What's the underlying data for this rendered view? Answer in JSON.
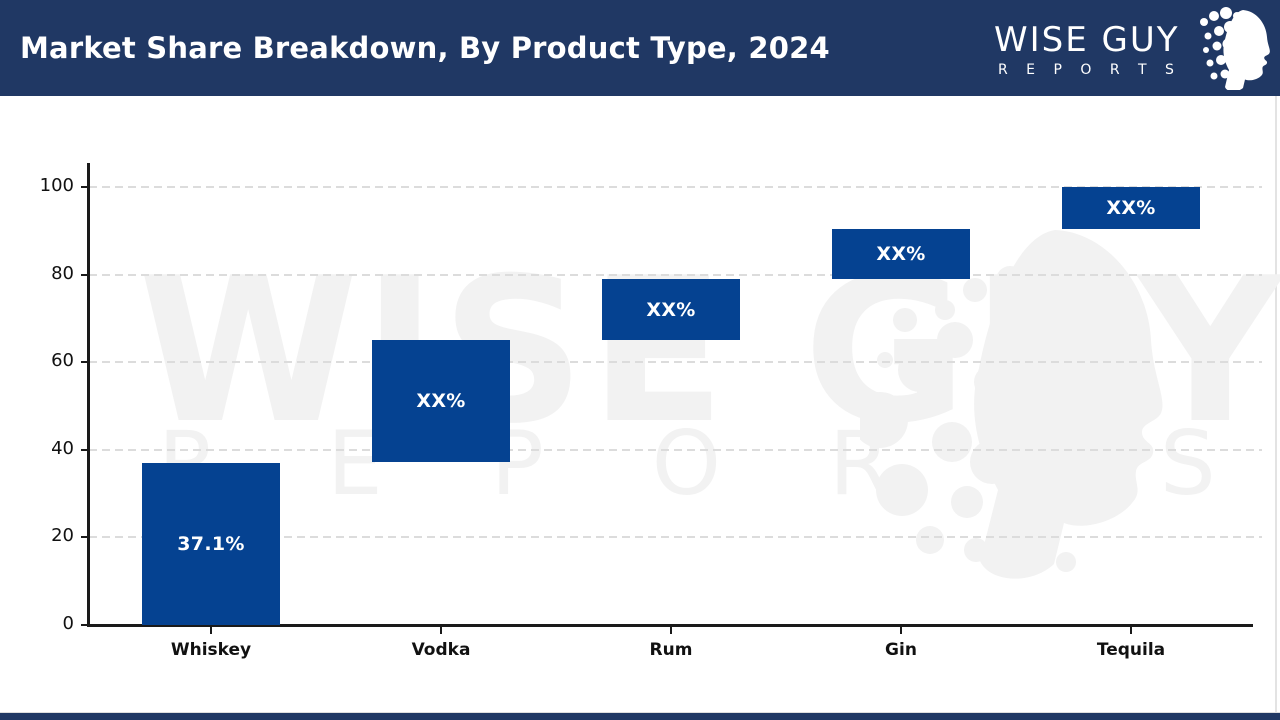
{
  "header": {
    "title": "Market Share Breakdown, By Product Type, 2024",
    "logo": {
      "line1": "WISE GUY",
      "line2": "R E P O R T S"
    }
  },
  "watermark": {
    "line1": "WISE GUY",
    "line2": "R E P O R T S"
  },
  "colors": {
    "header_bg": "#203864",
    "bottom_bar_bg": "#203864",
    "bar": "#054291",
    "bar_label": "#ffffff",
    "gridline": "#dcdcdc",
    "axis": "#1a1a1a",
    "watermark": "#f2f2f2"
  },
  "chart_data": {
    "type": "bar",
    "variant": "waterfall",
    "title": "Market Share Breakdown, By Product Type, 2024",
    "categories": [
      "Whiskey",
      "Vodka",
      "Rum",
      "Gin",
      "Tequila"
    ],
    "segment_start": [
      0,
      37.1,
      65,
      79,
      90.5
    ],
    "segment_end": [
      37.1,
      65,
      79,
      90.5,
      100
    ],
    "values": [
      37.1,
      27.9,
      14.0,
      11.5,
      9.5
    ],
    "bar_labels": [
      "37.1%",
      "XX%",
      "XX%",
      "XX%",
      "XX%"
    ],
    "xlabel": "",
    "ylabel": "",
    "ylim": [
      0,
      100
    ],
    "yticks": [
      0,
      20,
      40,
      60,
      80,
      100
    ],
    "grid": "horizontal-dashed",
    "legend": "none",
    "bar_color": "#054291"
  }
}
